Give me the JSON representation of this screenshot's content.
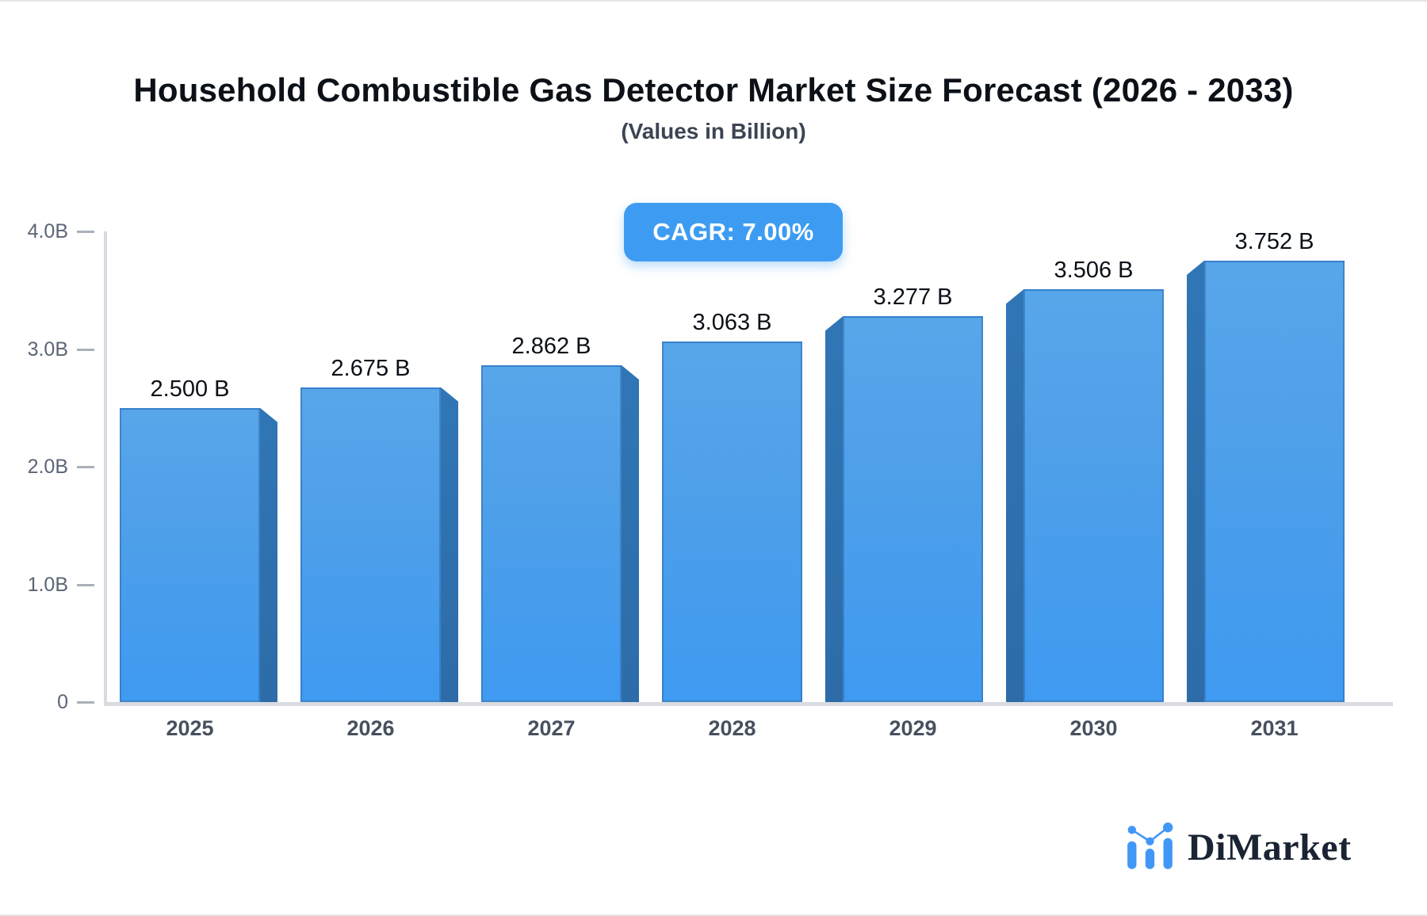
{
  "title": "Household Combustible Gas Detector Market Size Forecast (2026 - 2033)",
  "subtitle": "(Values in Billion)",
  "badge": {
    "label": "CAGR: 7.00%",
    "background": "#3d9cf2",
    "text_color": "#ffffff"
  },
  "chart_data": {
    "type": "bar",
    "title": "Household Combustible Gas Detector Market Size Forecast (2026 - 2033)",
    "subtitle": "(Values in Billion)",
    "categories": [
      "2025",
      "2026",
      "2027",
      "2028",
      "2029",
      "2030",
      "2031"
    ],
    "values": [
      2.5,
      2.675,
      2.862,
      3.063,
      3.277,
      3.506,
      3.752
    ],
    "value_labels": [
      "2.500 B",
      "2.675 B",
      "2.862 B",
      "3.063 B",
      "3.277 B",
      "3.506 B",
      "3.752 B"
    ],
    "cagr": "7.00%",
    "xlabel": "",
    "ylabel": "",
    "ylim": [
      0,
      4
    ],
    "yticks": [
      {
        "value": 0,
        "label": "0"
      },
      {
        "value": 1,
        "label": "1.0B"
      },
      {
        "value": 2,
        "label": "2.0B"
      },
      {
        "value": 3,
        "label": "3.0B"
      },
      {
        "value": 4,
        "label": "4.0B"
      }
    ],
    "grid": false,
    "legend": false,
    "bar_color_top": "#58a6ea",
    "bar_color_bottom": "#3f9af1",
    "bar_side_color": "#2e70af",
    "axis_color": "#d8dbe1"
  },
  "logo": {
    "text": "DiMarket",
    "icon": "bar-chart-logo-icon",
    "text_color": "#1b2433",
    "icon_color": "#4197f6"
  }
}
